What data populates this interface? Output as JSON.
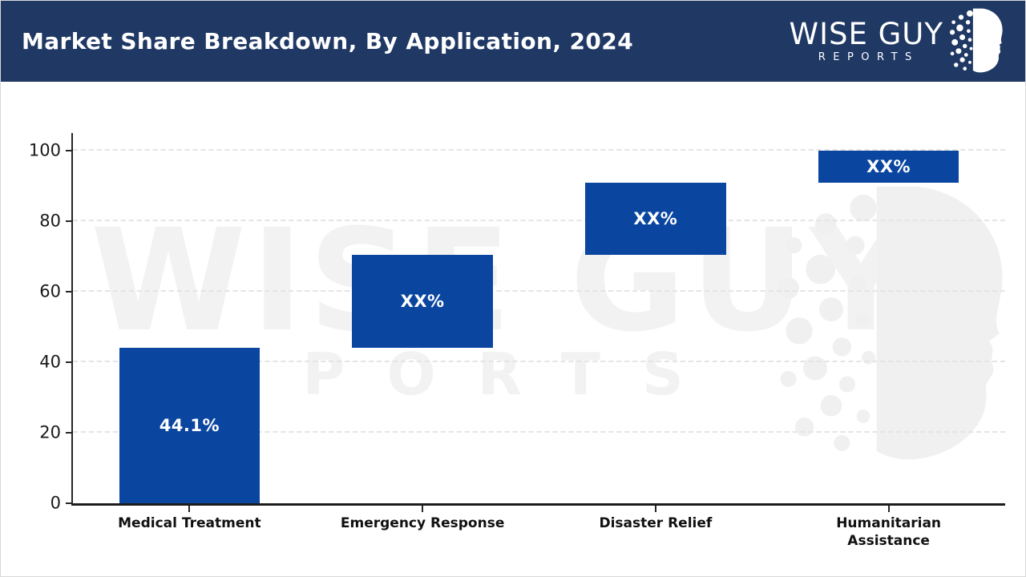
{
  "header": {
    "title": "Market Share Breakdown, By Application, 2024",
    "brand_line1": "WISE GUY",
    "brand_line2": "REPORTS"
  },
  "watermark": {
    "line1": "WISE GUY",
    "line2": "REPORTS"
  },
  "chart_data": {
    "type": "bar",
    "subtype": "stacked-waterfall-percentage",
    "title": "Market Share Breakdown, By Application, 2024",
    "categories": [
      "Medical Treatment",
      "Emergency Response",
      "Disaster Relief",
      "Humanitarian\nAssistance"
    ],
    "segments": [
      {
        "category": "Medical Treatment",
        "start": 0,
        "end": 44.1,
        "label": "44.1%"
      },
      {
        "category": "Emergency Response",
        "start": 44.1,
        "end": 70.5,
        "label": "XX%"
      },
      {
        "category": "Disaster Relief",
        "start": 70.5,
        "end": 91.0,
        "label": "XX%"
      },
      {
        "category": "Humanitarian Assistance",
        "start": 91.0,
        "end": 100.0,
        "label": "XX%"
      }
    ],
    "xlabel": "",
    "ylabel": "",
    "ylim": [
      0,
      100
    ],
    "yticks": [
      0,
      20,
      40,
      60,
      80,
      100
    ],
    "grid": "horizontal-dashed",
    "legend": "none",
    "bar_color": "#0a46a0",
    "bar_label_color": "#ffffff",
    "axis_color": "#262626",
    "gridline_color": "#e4e4e4",
    "header_color": "#1f3864"
  }
}
